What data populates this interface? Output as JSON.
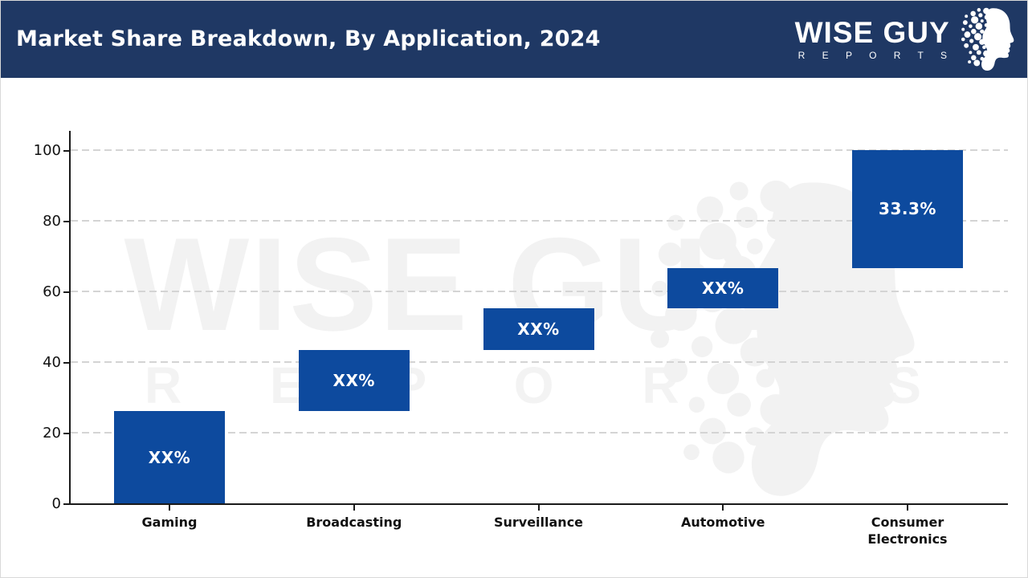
{
  "page": {
    "background": "#ffffff",
    "frame_border_color": "#d9d9d9"
  },
  "header": {
    "background": "#1f3864",
    "title": "Market Share Breakdown, By Application, 2024",
    "logo": {
      "name": "WISE GUY",
      "tagline": "R E P O R T S"
    }
  },
  "watermark": {
    "big_text": "WISE GUY",
    "small_text": "R E P O R T S"
  },
  "chart_data": {
    "type": "bar",
    "variant": "waterfall",
    "title": "Market Share Breakdown, By Application, 2024",
    "categories": [
      "Gaming",
      "Broadcasting",
      "Surveillance",
      "Automotive",
      "Consumer Electronics"
    ],
    "values": [
      26.1,
      17.3,
      11.8,
      11.5,
      33.3
    ],
    "segments": [
      {
        "category": "Gaming",
        "start": 0,
        "end": 26.1,
        "label": "XX%"
      },
      {
        "category": "Broadcasting",
        "start": 26.1,
        "end": 43.4,
        "label": "XX%"
      },
      {
        "category": "Surveillance",
        "start": 43.4,
        "end": 55.2,
        "label": "XX%"
      },
      {
        "category": "Automotive",
        "start": 55.2,
        "end": 66.7,
        "label": "XX%"
      },
      {
        "category": "Consumer Electronics",
        "start": 66.7,
        "end": 100,
        "label": "33.3%"
      }
    ],
    "xlabel": "",
    "ylabel": "",
    "ylim": [
      0,
      105
    ],
    "yticks": [
      0,
      20,
      40,
      60,
      80,
      100
    ],
    "grid": "horizontal-dashed",
    "legend": "none",
    "bar_color": "#0d4a9e",
    "bar_label_color": "#ffffff",
    "axis_color": "#1a1a1a",
    "gridline_color": "#d4d4d4",
    "tick_label_color": "#111111"
  }
}
